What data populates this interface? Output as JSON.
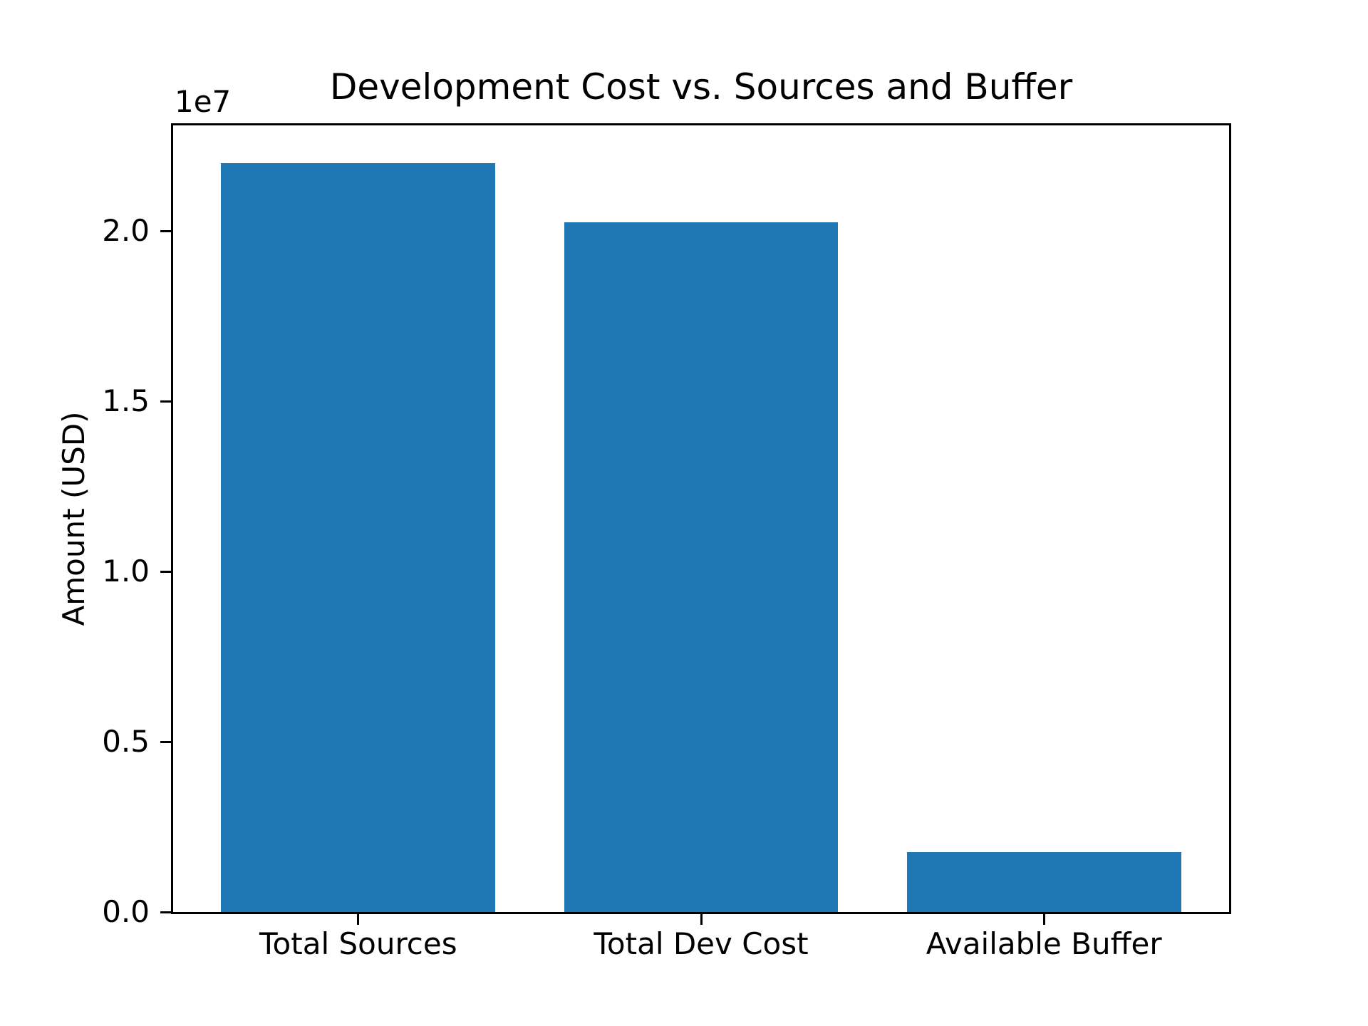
{
  "chart_data": {
    "type": "bar",
    "title": "Development Cost vs. Sources and Buffer",
    "xlabel": "",
    "ylabel": "Amount (USD)",
    "y_offset_label": "1e7",
    "categories": [
      "Total Sources",
      "Total Dev Cost",
      "Available Buffer"
    ],
    "values": [
      22000000,
      20250000,
      1750000
    ],
    "bar_color": "#1f77b4",
    "ylim": [
      0,
      23100000
    ],
    "yticks": [
      0,
      5000000,
      10000000,
      15000000,
      20000000
    ],
    "ytick_labels": [
      "0.0",
      "0.5",
      "1.0",
      "1.5",
      "2.0"
    ],
    "xlim": [
      -0.54,
      2.54
    ],
    "bar_width": 0.8,
    "grid": false,
    "legend": false,
    "background": "#ffffff",
    "text_color": "#000000"
  }
}
